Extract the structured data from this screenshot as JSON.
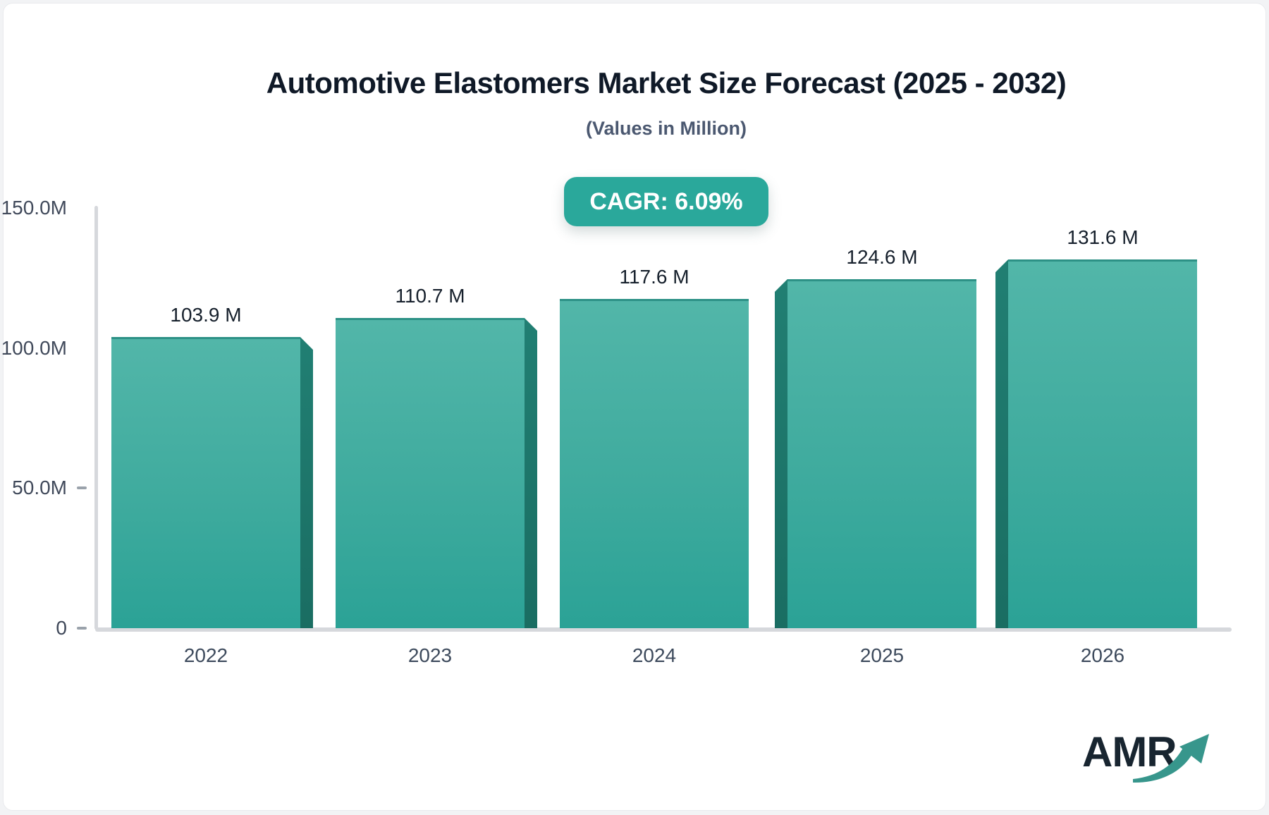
{
  "page": {
    "background": "#f2f3f5",
    "card_background": "#ffffff"
  },
  "header": {
    "title": "Automotive Elastomers Market Size Forecast (2025 - 2032)",
    "subtitle": "(Values in Million)",
    "cagr_badge": {
      "label": "CAGR: 6.09%",
      "background": "#2aa89b",
      "text_color": "#ffffff"
    }
  },
  "chart_data": {
    "type": "bar",
    "title": "Automotive Elastomers Market Size Forecast (2025 - 2032)",
    "subtitle": "(Values in Million)",
    "unit": "Million",
    "categories": [
      "2022",
      "2023",
      "2024",
      "2025",
      "2026"
    ],
    "values": [
      103.9,
      110.7,
      117.6,
      124.6,
      131.6
    ],
    "value_labels": [
      "103.9 M",
      "110.7 M",
      "117.6 M",
      "124.6 M",
      "131.6 M"
    ],
    "cagr": "6.09%",
    "ylim": [
      0,
      150
    ],
    "y_ticks": [
      {
        "label": "150.0M",
        "value": 150,
        "dash": false
      },
      {
        "label": "100.0M",
        "value": 100,
        "dash": false
      },
      {
        "label": "50.0M",
        "value": 50,
        "dash": true
      },
      {
        "label": "0",
        "value": 0,
        "dash": true
      }
    ],
    "grid": false,
    "legend": "none",
    "bar_color_top": "#52b6a9",
    "bar_color_bottom": "#2ba296",
    "bar_side_color": "#1e7c70",
    "axis_color": "#d6d8dc",
    "label_color": "#40495a"
  },
  "logo": {
    "text": "AMR",
    "text_color": "#182530",
    "arrow_color": "#37968c"
  }
}
